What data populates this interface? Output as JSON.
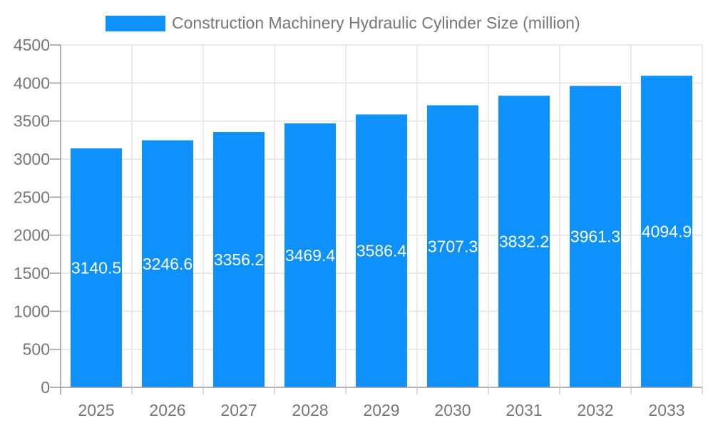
{
  "chart_data": {
    "type": "bar",
    "title": "Construction Machinery Hydraulic Cylinder Size (million)",
    "categories": [
      "2025",
      "2026",
      "2027",
      "2028",
      "2029",
      "2030",
      "2031",
      "2032",
      "2033"
    ],
    "values": [
      3140.5,
      3246.6,
      3356.2,
      3469.4,
      3586.4,
      3707.3,
      3832.2,
      3961.3,
      4094.9
    ],
    "value_labels": [
      "3140.5",
      "3246.6",
      "3356.2",
      "3469.4",
      "3586.4",
      "3707.3",
      "3832.2",
      "3961.3",
      "4094.9"
    ],
    "xlabel": "",
    "ylabel": "",
    "ylim": [
      0,
      4500
    ],
    "yticks": [
      0,
      500,
      1000,
      1500,
      2000,
      2500,
      3000,
      3500,
      4000,
      4500
    ],
    "ytick_labels": [
      "0",
      "500",
      "1000",
      "1500",
      "2000",
      "2500",
      "3000",
      "3500",
      "4000",
      "4500"
    ],
    "grid": true,
    "legend_position": "top",
    "value_label_position": "inside-middle"
  },
  "colors": {
    "bar": "#0e91fa",
    "bar_value_text": "#ffffff",
    "axis_line": "#999999",
    "x_tick": "#cccccc",
    "grid_line": "#e3e3e3",
    "axis_text": "#767676",
    "background": "#ffffff"
  }
}
